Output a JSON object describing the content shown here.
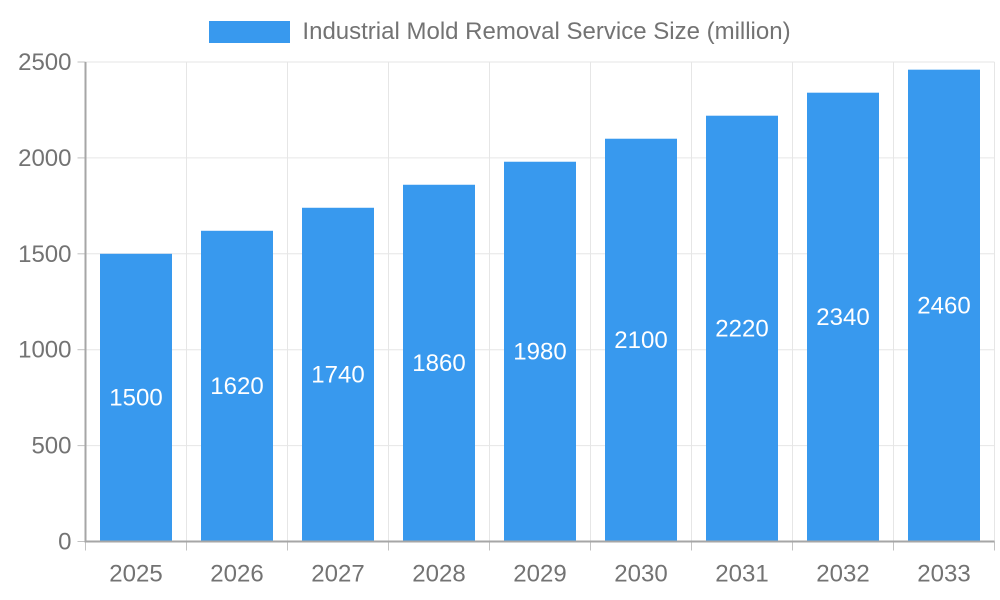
{
  "legend": {
    "label": "Industrial Mold Removal Service Size (million)"
  },
  "chart_data": {
    "type": "bar",
    "title": "Industrial Mold Removal Service Size (million)",
    "series_name": "Industrial Mold Removal Service Size (million)",
    "categories": [
      "2025",
      "2026",
      "2027",
      "2028",
      "2029",
      "2030",
      "2031",
      "2032",
      "2033"
    ],
    "values": [
      1500,
      1620,
      1740,
      1860,
      1980,
      2100,
      2220,
      2340,
      2460
    ],
    "xlabel": "",
    "ylabel": "",
    "ylim": [
      0,
      2500
    ],
    "yticks": [
      0,
      500,
      1000,
      1500,
      2000,
      2500
    ],
    "grid": true,
    "legend_position": "top-center",
    "value_label_position": "inside-middle",
    "colors": {
      "bar": "#3899EE",
      "value_text": "#FFFFFF",
      "tick_text": "#737373",
      "axis": "#A6A6A6",
      "tick_mark": "#C2C2C2",
      "grid": "#E6E6E6",
      "background": "#FFFFFF"
    }
  }
}
